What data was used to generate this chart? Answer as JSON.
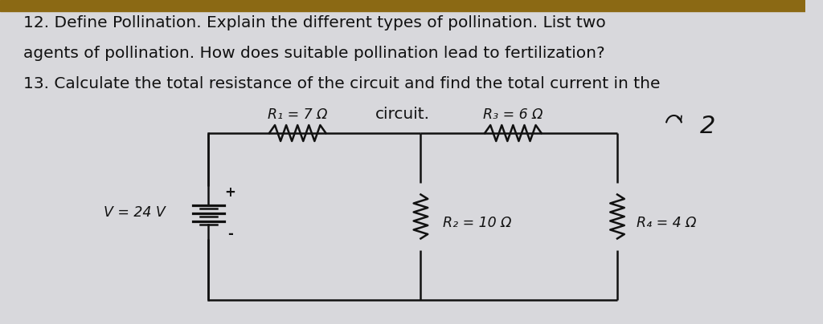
{
  "top_strip_color": "#8B6914",
  "paper_color": "#d8d8dc",
  "text_color": "#111111",
  "line1": "12. Define Pollination. Explain the different types of pollination. List two",
  "line2": "agents of pollination. How does suitable pollination lead to fertilization?",
  "line3": "13. Calculate the total resistance of the circuit and find the total current in the",
  "line4": "circuit.",
  "R1_label": "R₁ = 7 Ω",
  "R2_label": "R₂ = 10 Ω",
  "R3_label": "R₃ = 6 Ω",
  "R4_label": "R₄ = 4 Ω",
  "V_label": "V = 24 V",
  "note": "2",
  "plus_label": "+",
  "minus_label": "-"
}
